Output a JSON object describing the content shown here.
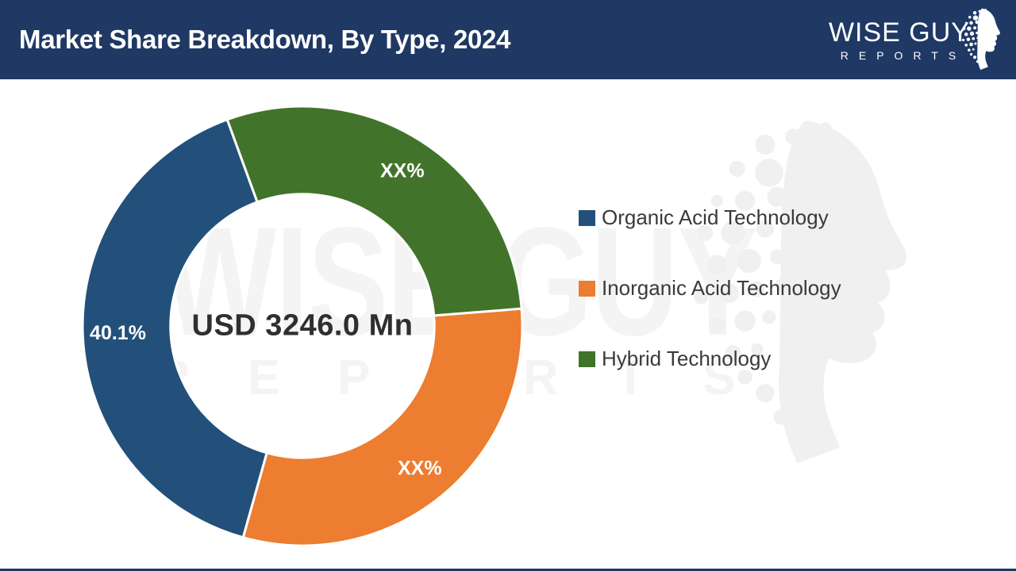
{
  "header": {
    "title": "Market Share Breakdown, By Type, 2024"
  },
  "logo": {
    "line1": "WISE GUY",
    "line2": "REPORTS"
  },
  "watermark": {
    "line1": "WISE GUY",
    "line2": "REPORTS"
  },
  "chart_data": {
    "type": "pie",
    "subtype": "donut",
    "title": "Market Share Breakdown, By Type, 2024",
    "center_label": "USD 3246.0 Mn",
    "start_angle_deg": 110,
    "direction": "counterclockwise",
    "donut_hole_ratio": 0.6,
    "label_radius_ratio": 0.84,
    "legend_position": "right",
    "slices": [
      {
        "name": "Organic Acid Technology",
        "label": "40.1%",
        "value_pct": 40.1,
        "color": "#23507A"
      },
      {
        "name": "Inorganic Acid Technology",
        "label": "XX%",
        "value_pct": 30.6,
        "color": "#EC7D31"
      },
      {
        "name": "Hybrid Technology",
        "label": "XX%",
        "value_pct": 29.3,
        "color": "#42732B"
      }
    ],
    "colors": {
      "header_bg": "#1F3864",
      "slice_label_text": "#FFFFFF",
      "center_label_text": "#2F2F2F",
      "legend_text": "#3A3A3A",
      "watermark": "#F4F4F5"
    }
  }
}
